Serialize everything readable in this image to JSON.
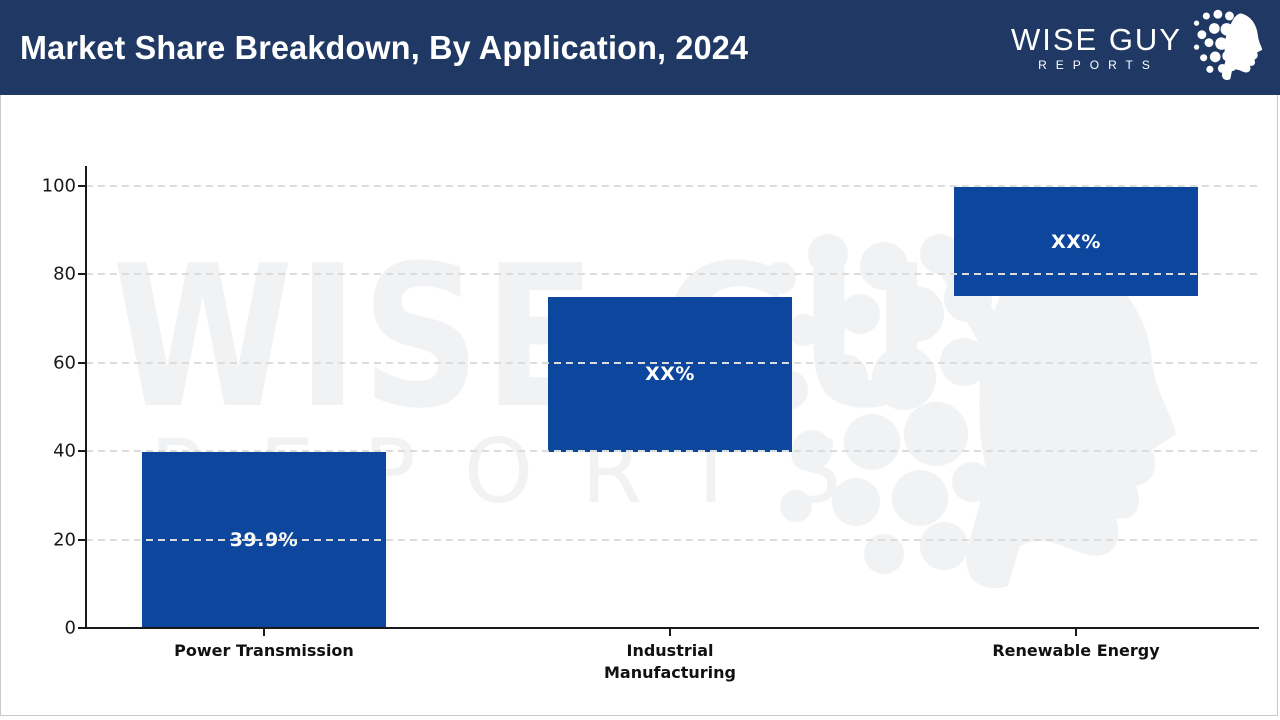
{
  "header": {
    "title": "Market Share Breakdown, By Application, 2024",
    "bg_color": "#1f3864",
    "logo": {
      "wordmark": "WISE GUY",
      "subtext": "REPORTS"
    }
  },
  "watermark": {
    "wordmark": "WISE GUY",
    "subtext": "REPORTS"
  },
  "chart_data": {
    "type": "bar",
    "subtype": "floating-segment-waterfall",
    "title": "Market Share Breakdown, By Application, 2024",
    "categories": [
      "Power Transmission",
      "Industrial\nManufacturing",
      "Renewable Energy"
    ],
    "segments": [
      {
        "category": "Power Transmission",
        "start": 0,
        "end": 39.9,
        "label": "39.9%"
      },
      {
        "category": "Industrial Manufacturing",
        "start": 39.9,
        "end": 75,
        "label": "XX%"
      },
      {
        "category": "Renewable Energy",
        "start": 75,
        "end": 99.8,
        "label": "XX%"
      }
    ],
    "yticks": [
      0,
      20,
      40,
      60,
      80,
      100
    ],
    "ylim": [
      0,
      100
    ],
    "xlabel": "",
    "ylabel": "",
    "grid": true,
    "grid_style": "dashed",
    "legend": "none",
    "bar_color": "#0c469d",
    "grid_color": "#dcdcdc",
    "axis_color": "#1a1a1a"
  }
}
